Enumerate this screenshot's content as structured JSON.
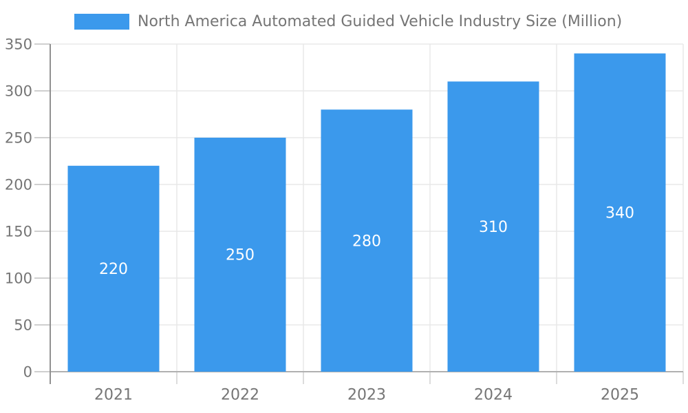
{
  "legend": {
    "label": "North America Automated Guided Vehicle Industry Size (Million)"
  },
  "chart_data": {
    "type": "bar",
    "title": "",
    "series_name": "North America Automated Guided Vehicle Industry Size (Million)",
    "categories": [
      "2021",
      "2022",
      "2023",
      "2024",
      "2025"
    ],
    "values": [
      220,
      250,
      280,
      310,
      340
    ],
    "bar_labels": [
      "220",
      "250",
      "280",
      "310",
      "340"
    ],
    "xlabel": "",
    "ylabel": "",
    "ylim": [
      0,
      350
    ],
    "yticks": [
      0,
      50,
      100,
      150,
      200,
      250,
      300,
      350
    ],
    "legend_position": "top",
    "grid": true,
    "colors": {
      "bar": "#3b99ec",
      "value_label": "#ffffff",
      "axis_text": "#757575",
      "gridline": "#e8e8e8",
      "y_tick": "#cfcfcf",
      "x_tick": "#dcdcdc",
      "y_axis_line": "#909090",
      "x_axis_line": "#b0b0b0"
    }
  }
}
